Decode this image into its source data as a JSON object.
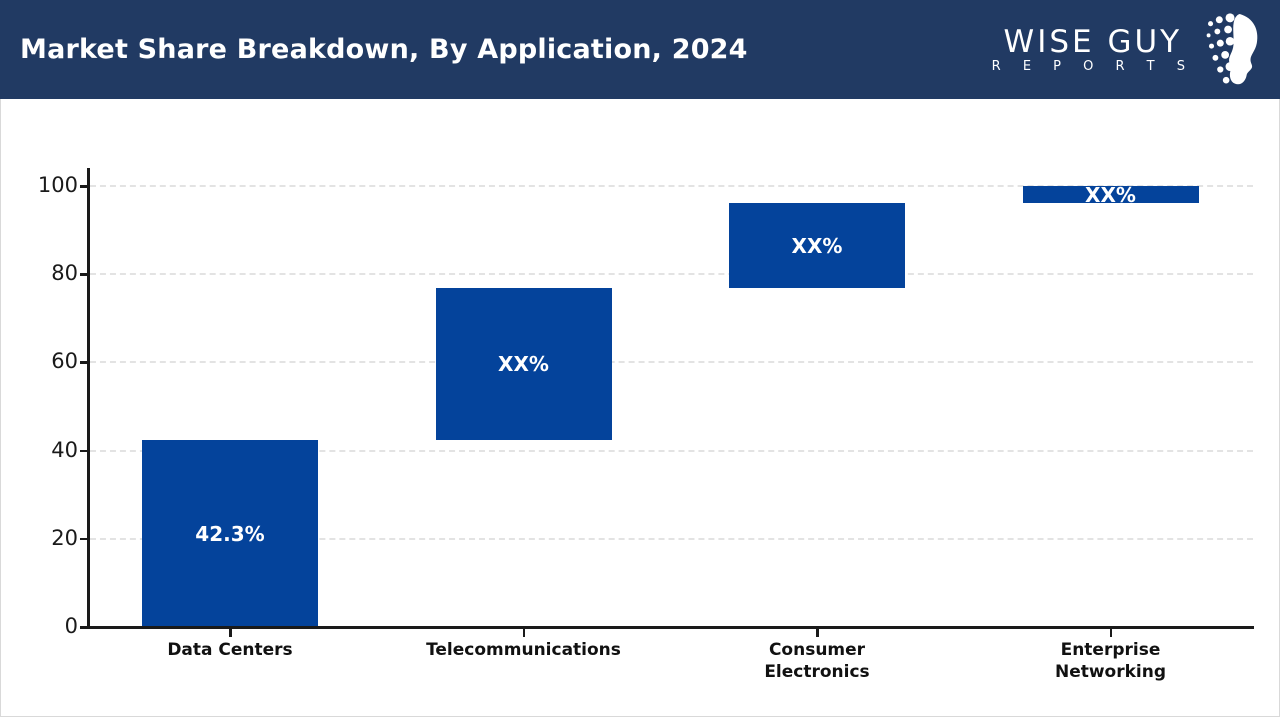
{
  "header": {
    "title": "Market Share Breakdown, By Application, 2024",
    "background_color": "#213A63"
  },
  "logo": {
    "line1": "WISE GUY",
    "line2": "R E P O R T S"
  },
  "watermark": {
    "line1": "WISE GUY",
    "line2": "R E P O R T S"
  },
  "chart_data": {
    "type": "bar",
    "subtype": "waterfall-stacked-breakdown",
    "title": "Market Share Breakdown, By Application, 2024",
    "categories": [
      "Data Centers",
      "Telecommunications",
      "Consumer Electronics",
      "Enterprise Networking"
    ],
    "category_lines": [
      [
        "Data Centers"
      ],
      [
        "Telecommunications"
      ],
      [
        "Consumer",
        "Electronics"
      ],
      [
        "Enterprise",
        "Networking"
      ]
    ],
    "segments": [
      {
        "category": "Data Centers",
        "start": 0,
        "end": 42.3,
        "label": "42.3%"
      },
      {
        "category": "Telecommunications",
        "start": 42.3,
        "end": 76.8,
        "label": "XX%"
      },
      {
        "category": "Consumer Electronics",
        "start": 76.8,
        "end": 96.1,
        "label": "XX%"
      },
      {
        "category": "Enterprise Networking",
        "start": 96.1,
        "end": 100,
        "label": "XX%"
      }
    ],
    "ylim": [
      0,
      100
    ],
    "yticks": [
      0,
      20,
      40,
      60,
      80,
      100
    ],
    "grid": "horizontal dashed",
    "legend": "none",
    "bar_color": "#04439B",
    "bar_label_color": "#ffffff",
    "axis_color": "#1a1a1a"
  }
}
